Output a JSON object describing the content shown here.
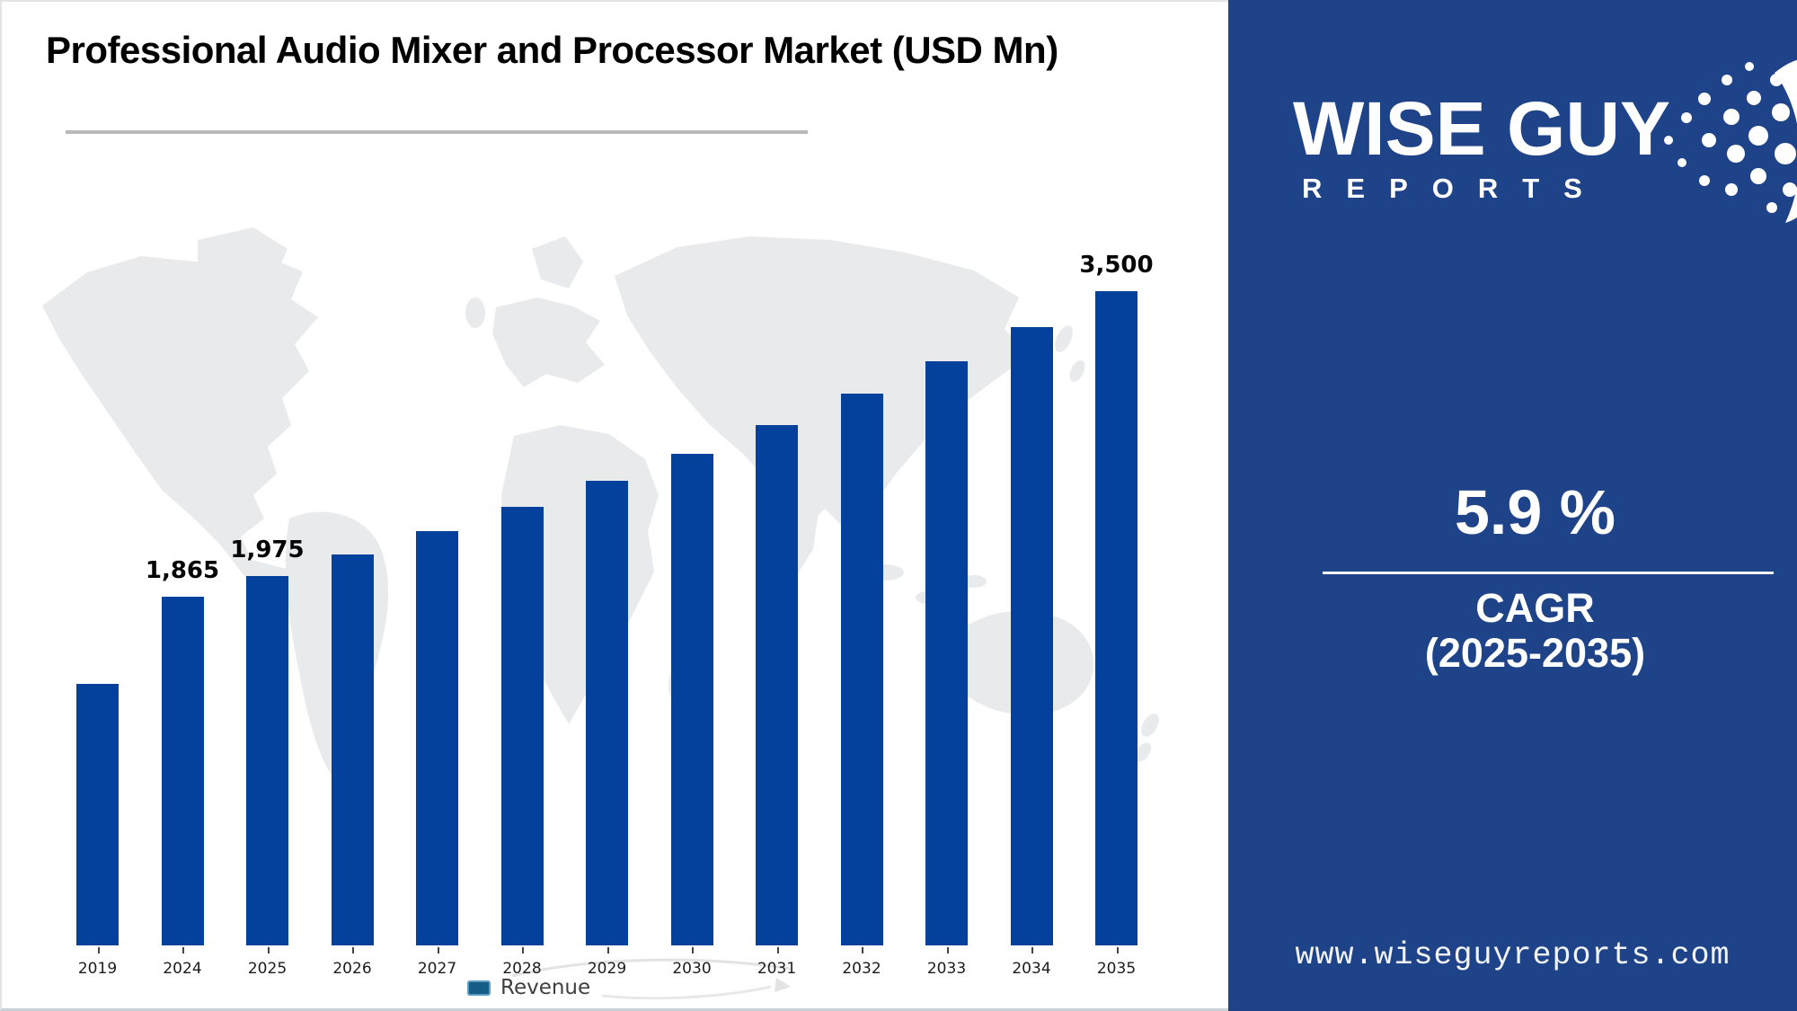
{
  "title": "Professional Audio Mixer and Processor Market (USD Mn)",
  "chart_data": {
    "type": "bar",
    "title": "Professional Audio Mixer and Processor Market (USD Mn)",
    "unit": "USD Mn",
    "categories": [
      "2019",
      "2024",
      "2025",
      "2026",
      "2027",
      "2028",
      "2029",
      "2030",
      "2031",
      "2032",
      "2033",
      "2034",
      "2035"
    ],
    "series": [
      {
        "name": "Revenue",
        "values": [
          1400,
          1865,
          1975,
          2092,
          2215,
          2346,
          2484,
          2631,
          2786,
          2950,
          3124,
          3309,
          3500
        ]
      }
    ],
    "data_labels": {
      "2024": "1,865",
      "2025": "1,975",
      "2035": "3,500"
    },
    "ylim": [
      0,
      3500
    ],
    "grid": false,
    "xlabel": "",
    "ylabel": "",
    "legend": {
      "label": "Revenue",
      "position": "bottom"
    },
    "bar_color": "#04419c",
    "legend_swatch_color": "#155d85"
  },
  "sidebar": {
    "logo_line1": "WISE GUY",
    "logo_line2": "REPORTS",
    "cagr_value": "5.9 %",
    "cagr_label_line1": "CAGR",
    "cagr_label_line2": "(2025-2035)",
    "website": "www.wiseguyreports.com"
  },
  "colors": {
    "bar_blue": "#04419c",
    "sidebar_navy": "#1f4389",
    "map_watermark_gray": "#e9eaec",
    "title_underline_gray": "#b8b8b8",
    "legend_swatch": "#155d85"
  }
}
